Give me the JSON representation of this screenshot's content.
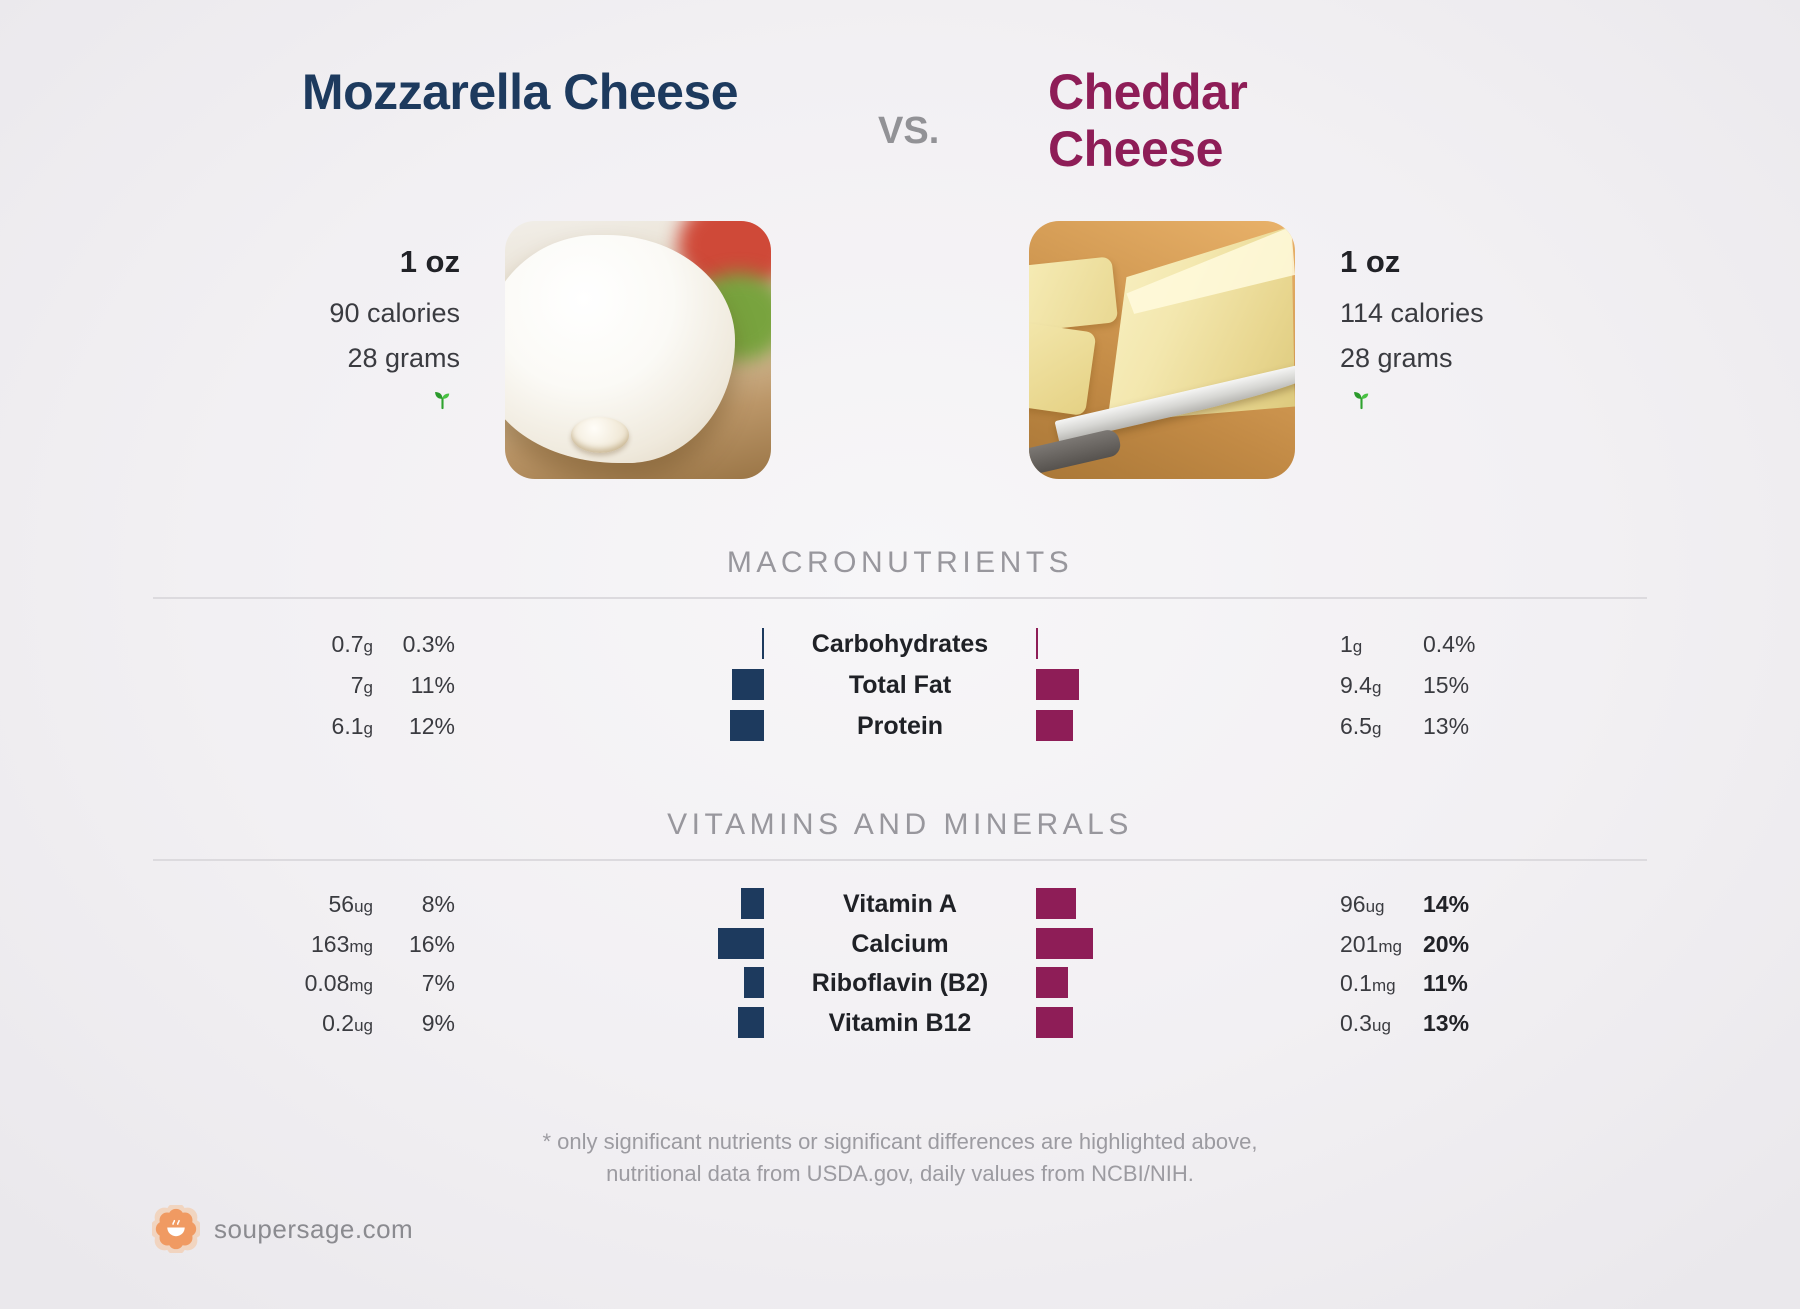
{
  "titles": {
    "left": "Mozzarella Cheese",
    "vs": "VS.",
    "right": "Cheddar Cheese"
  },
  "serving": {
    "left": {
      "size": "1 oz",
      "calories": "90 calories",
      "weight": "28 grams"
    },
    "right": {
      "size": "1 oz",
      "calories": "114 calories",
      "weight": "28 grams"
    }
  },
  "sections": [
    {
      "title": "MACRONUTRIENTS",
      "rows": [
        {
          "label": "Carbohydrates",
          "left": {
            "amount": "0.7",
            "unit": "g",
            "percent": "0.3%",
            "bar": 0.3
          },
          "right": {
            "amount": "1",
            "unit": "g",
            "percent": "0.4%",
            "bar": 0.4,
            "bold": false
          }
        },
        {
          "label": "Total Fat",
          "left": {
            "amount": "7",
            "unit": "g",
            "percent": "11%",
            "bar": 11
          },
          "right": {
            "amount": "9.4",
            "unit": "g",
            "percent": "15%",
            "bar": 15,
            "bold": false
          }
        },
        {
          "label": "Protein",
          "left": {
            "amount": "6.1",
            "unit": "g",
            "percent": "12%",
            "bar": 12
          },
          "right": {
            "amount": "6.5",
            "unit": "g",
            "percent": "13%",
            "bar": 13,
            "bold": false
          }
        }
      ]
    },
    {
      "title": "VITAMINS AND MINERALS",
      "rows": [
        {
          "label": "Vitamin A",
          "left": {
            "amount": "56",
            "unit": "ug",
            "percent": "8%",
            "bar": 8
          },
          "right": {
            "amount": "96",
            "unit": "ug",
            "percent": "14%",
            "bar": 14,
            "bold": true
          }
        },
        {
          "label": "Calcium",
          "left": {
            "amount": "163",
            "unit": "mg",
            "percent": "16%",
            "bar": 16
          },
          "right": {
            "amount": "201",
            "unit": "mg",
            "percent": "20%",
            "bar": 20,
            "bold": true
          }
        },
        {
          "label": "Riboflavin (B2)",
          "left": {
            "amount": "0.08",
            "unit": "mg",
            "percent": "7%",
            "bar": 7
          },
          "right": {
            "amount": "0.1",
            "unit": "mg",
            "percent": "11%",
            "bar": 11,
            "bold": true
          }
        },
        {
          "label": "Vitamin B12",
          "left": {
            "amount": "0.2",
            "unit": "ug",
            "percent": "9%",
            "bar": 9
          },
          "right": {
            "amount": "0.3",
            "unit": "ug",
            "percent": "13%",
            "bar": 13,
            "bold": true
          }
        }
      ]
    }
  ],
  "footnote": {
    "line1": "* only significant nutrients or significant differences are highlighted above,",
    "line2": "nutritional data from USDA.gov, daily values from NCBI/NIH."
  },
  "brand": {
    "site": "soupersage.com"
  },
  "icons": {
    "dietary": "sprout-icon",
    "brand": "soup-bowl-badge-icon"
  },
  "colors": {
    "mozzarella": "#1d3a5e",
    "cheddar": "#8e1d57",
    "accent_green": "#2fa32f",
    "brand_orange": "#f09a62"
  },
  "chart_data": [
    {
      "type": "bar",
      "title": "MACRONUTRIENTS",
      "categories": [
        "Carbohydrates",
        "Total Fat",
        "Protein"
      ],
      "series": [
        {
          "name": "Mozzarella Cheese (1 oz, 90 calories, 28 grams)",
          "color": "#1d3a5e",
          "values_percent_dv": [
            0.3,
            11,
            12
          ],
          "values_amount": [
            "0.7g",
            "7g",
            "6.1g"
          ]
        },
        {
          "name": "Cheddar Cheese (1 oz, 114 calories, 28 grams)",
          "color": "#8e1d57",
          "values_percent_dv": [
            0.4,
            15,
            13
          ],
          "values_amount": [
            "1g",
            "9.4g",
            "6.5g"
          ]
        }
      ],
      "layout": "horizontal paired bars diverging from center labels, mozzarella left, cheddar right"
    },
    {
      "type": "bar",
      "title": "VITAMINS AND MINERALS",
      "categories": [
        "Vitamin A",
        "Calcium",
        "Riboflavin (B2)",
        "Vitamin B12"
      ],
      "series": [
        {
          "name": "Mozzarella Cheese",
          "color": "#1d3a5e",
          "values_percent_dv": [
            8,
            16,
            7,
            9
          ],
          "values_amount": [
            "56ug",
            "163mg",
            "0.08mg",
            "0.2ug"
          ]
        },
        {
          "name": "Cheddar Cheese",
          "color": "#8e1d57",
          "values_percent_dv": [
            14,
            20,
            11,
            13
          ],
          "values_amount": [
            "96ug",
            "201mg",
            "0.1mg",
            "0.3ug"
          ],
          "highlighted_bold": true
        }
      ],
      "layout": "horizontal paired bars diverging from center labels, mozzarella left, cheddar right"
    }
  ]
}
